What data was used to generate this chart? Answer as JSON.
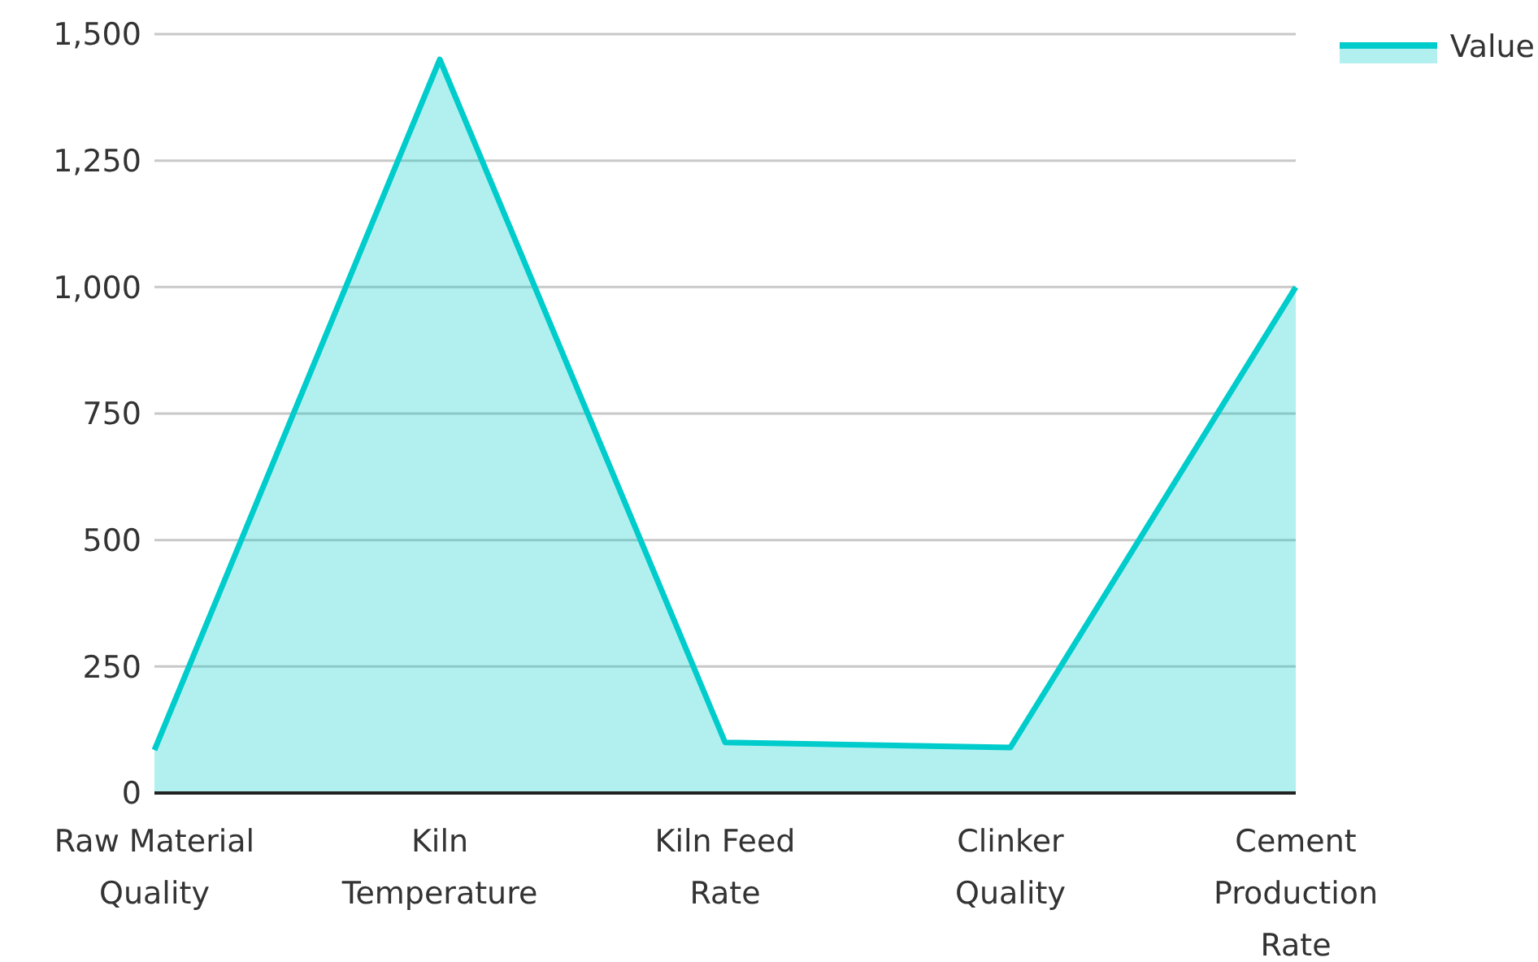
{
  "chart_data": {
    "type": "area",
    "categories": [
      "Raw Material Quality",
      "Kiln Temperature",
      "Kiln Feed Rate",
      "Clinker Quality",
      "Cement Production Rate"
    ],
    "series": [
      {
        "name": "Value",
        "color": "#00cccc",
        "values": [
          85,
          1450,
          100,
          90,
          1000
        ]
      }
    ],
    "ylim": [
      0,
      1500
    ],
    "yticks": [
      0,
      250,
      500,
      750,
      {
        "value": 1000,
        "label": "1,000"
      },
      {
        "value": 1250,
        "label": "1,250"
      },
      {
        "value": 1500,
        "label": "1,500"
      }
    ],
    "grid": "y",
    "legend": "top right"
  }
}
